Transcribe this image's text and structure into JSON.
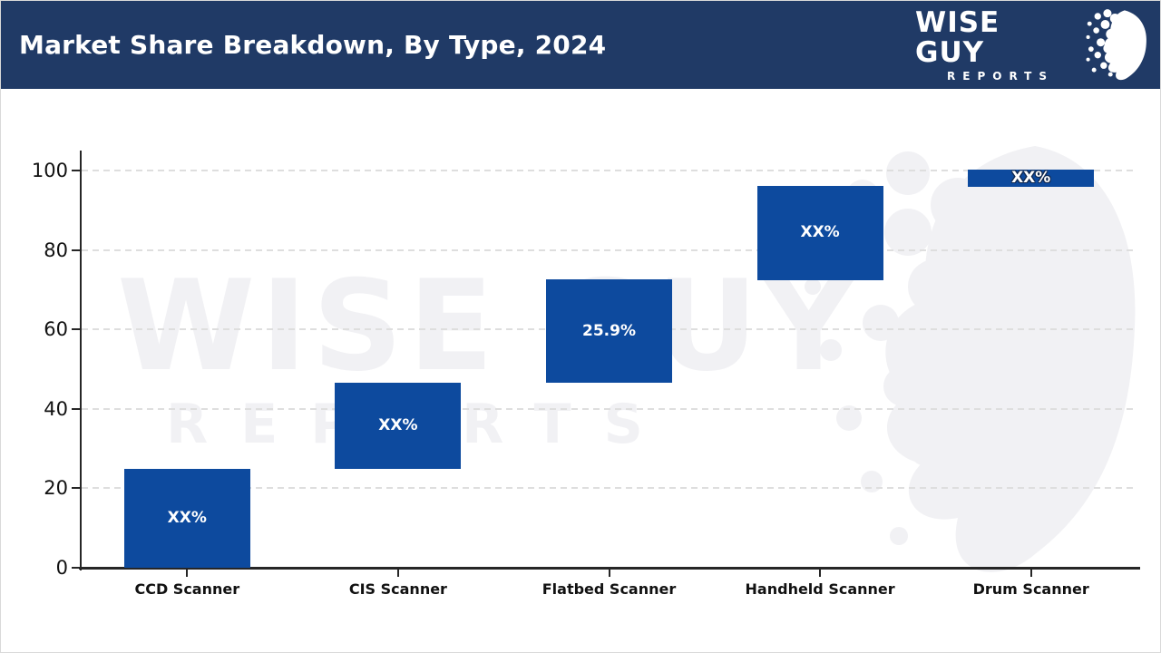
{
  "header": {
    "title": "Market Share Breakdown, By Type, 2024",
    "logo": {
      "line1": "WISE GUY",
      "line2": "REPORTS"
    }
  },
  "watermark": {
    "line1": "WISE GUY",
    "line2": "REPORTS"
  },
  "chart_data": {
    "type": "bar",
    "subtype": "floating-segment-waterfall",
    "title": "Market Share Breakdown, By Type, 2024",
    "categories": [
      "CCD Scanner",
      "CIS Scanner",
      "Flatbed Scanner",
      "Handheld Scanner",
      "Drum Scanner"
    ],
    "segments": [
      {
        "category": "CCD Scanner",
        "start": 0.0,
        "end": 25.0,
        "label": "XX%",
        "label_style": "solid"
      },
      {
        "category": "CIS Scanner",
        "start": 24.8,
        "end": 46.5,
        "label": "XX%",
        "label_style": "solid"
      },
      {
        "category": "Flatbed Scanner",
        "start": 46.6,
        "end": 72.5,
        "label": "25.9%",
        "label_style": "solid"
      },
      {
        "category": "Handheld Scanner",
        "start": 72.4,
        "end": 96.1,
        "label": "XX%",
        "label_style": "solid"
      },
      {
        "category": "Drum Scanner",
        "start": 96.0,
        "end": 100.2,
        "label": "XX%",
        "label_style": "outlined"
      }
    ],
    "xlabel": "",
    "ylabel": "",
    "ylim": [
      0,
      100
    ],
    "yticks": [
      0,
      20,
      40,
      60,
      80,
      100
    ],
    "grid": "horizontal-dashed",
    "legend": "none",
    "bar_color": "#0d4a9e",
    "bar_label_color": "#ffffff",
    "axis_color": "#262626",
    "header_color": "#203a66"
  }
}
